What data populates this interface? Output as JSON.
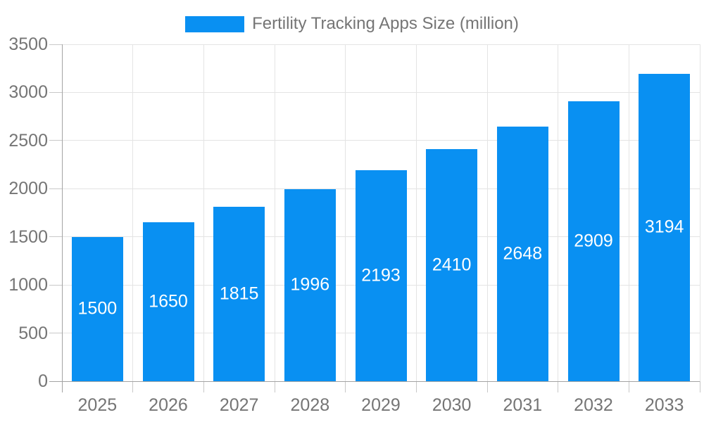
{
  "legend": {
    "label": "Fertility Tracking Apps Size (million)"
  },
  "colors": {
    "bar": "#0990F2",
    "bar_label_text": "#ffffff",
    "axis_text": "#757575",
    "legend_text": "#757575",
    "grid_line": "#e4e4e4",
    "axis_line": "#a3a3a3",
    "tick_line": "#c8c8c8",
    "background": "#ffffff"
  },
  "chart_data": {
    "type": "bar",
    "title": "Fertility Tracking Apps Size (million)",
    "categories": [
      "2025",
      "2026",
      "2027",
      "2028",
      "2029",
      "2030",
      "2031",
      "2032",
      "2033"
    ],
    "values": [
      1500,
      1650,
      1815,
      1996,
      2193,
      2410,
      2648,
      2909,
      3194
    ],
    "series_name": "Fertility Tracking Apps Size (million)",
    "xlabel": "",
    "ylabel": "",
    "ylim": [
      0,
      3500
    ],
    "ytick_interval": 500,
    "yticks": [
      0,
      500,
      1000,
      1500,
      2000,
      2500,
      3000,
      3500
    ],
    "grid": true,
    "legend_position": "top",
    "bar_value_labels": "inside-center"
  }
}
